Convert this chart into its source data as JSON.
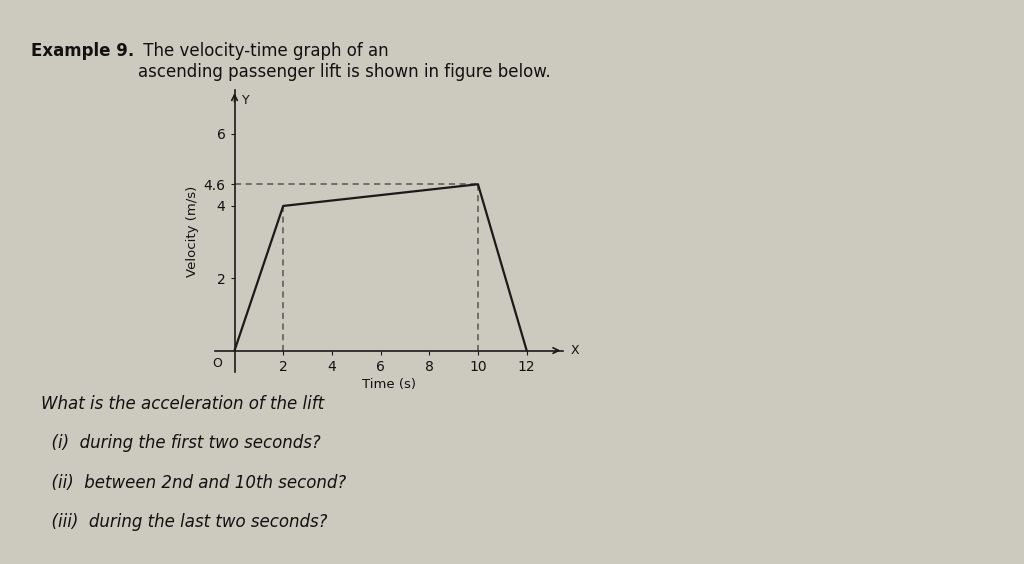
{
  "title_bold": "Example 9.",
  "title_normal": " The velocity-time graph of an\nascending passenger lift is shown in figure below.",
  "title_fontsize": 12,
  "xlabel": "Time (s)",
  "ylabel": "Velocity (m/s)",
  "x_label_arrow": "X",
  "y_label_arrow": "Y",
  "graph_points": [
    [
      0,
      0
    ],
    [
      2,
      4
    ],
    [
      10,
      4.6
    ],
    [
      12,
      0
    ]
  ],
  "xticks": [
    2,
    4,
    6,
    8,
    10,
    12
  ],
  "yticks": [
    2,
    4,
    6
  ],
  "ytick_extra": 4.6,
  "xmax": 13.5,
  "ymax": 7.2,
  "line_color": "#1a1a1a",
  "dashed_color": "#555555",
  "bg_color": "#ccc9be",
  "text_color": "#111111",
  "origin_label": "O",
  "questions_lines": [
    "What is the acceleration of the lift",
    "  (i)  during the first two seconds?",
    "  (ii)  between 2nd and 10th second?",
    "  (iii)  during the last two seconds?"
  ],
  "questions_fontsize": 12,
  "fig_bg_color": "#ccc9be"
}
